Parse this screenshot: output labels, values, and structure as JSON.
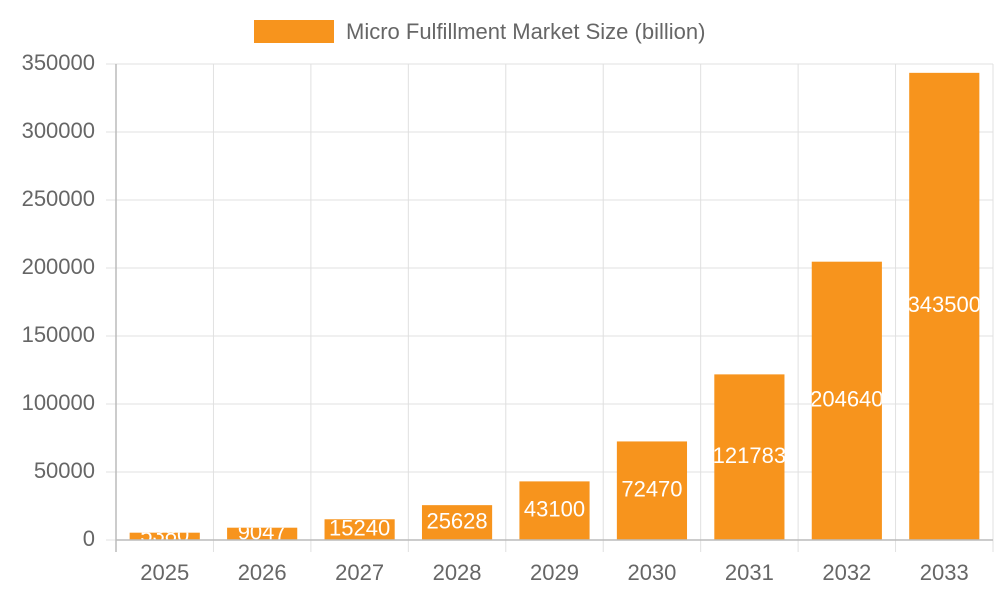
{
  "chart_data": {
    "type": "bar",
    "categories": [
      "2025",
      "2026",
      "2027",
      "2028",
      "2029",
      "2030",
      "2031",
      "2032",
      "2033"
    ],
    "series": [
      {
        "name": "Micro Fulfillment Market Size (billion)",
        "color": "#f7941d",
        "values": [
          5380,
          9047,
          15240,
          25628,
          43100,
          72470,
          121783,
          204640,
          343500
        ]
      }
    ],
    "ylim": [
      0,
      350000
    ],
    "yticks": [
      0,
      50000,
      100000,
      150000,
      200000,
      250000,
      300000,
      350000
    ],
    "grid": true,
    "legend": "top",
    "data_labels": true
  }
}
